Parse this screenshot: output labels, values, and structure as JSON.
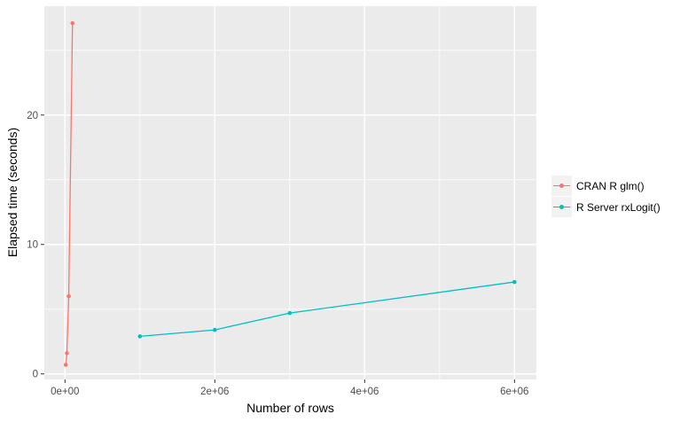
{
  "chart_data": {
    "type": "line",
    "title": "",
    "xlabel": "Number of rows",
    "ylabel": "Elapsed time (seconds)",
    "xlim": [
      -276000,
      6292000
    ],
    "ylim": [
      -0.43,
      28.41
    ],
    "grid": true,
    "legend_position": "right",
    "x_ticks": {
      "values": [
        0,
        2000000,
        4000000,
        6000000
      ],
      "labels": [
        "0e+00",
        "2e+06",
        "4e+06",
        "6e+06"
      ]
    },
    "x_minor": [
      1000000,
      3000000,
      5000000
    ],
    "y_ticks": {
      "values": [
        0,
        10,
        20
      ],
      "labels": [
        "0",
        "10",
        "20"
      ]
    },
    "y_minor": [
      5,
      15,
      25
    ],
    "series": [
      {
        "name": "CRAN R glm()",
        "color": "#F8766D",
        "points": [
          [
            10000,
            0.7
          ],
          [
            25000,
            1.6
          ],
          [
            50000,
            6.0
          ],
          [
            100000,
            27.1
          ]
        ]
      },
      {
        "name": "R Server rxLogit()",
        "color": "#00BFC4",
        "points": [
          [
            1000000,
            2.9
          ],
          [
            2000000,
            3.4
          ],
          [
            3000000,
            4.7
          ],
          [
            6000000,
            7.1
          ]
        ]
      }
    ]
  },
  "colors": {
    "panel_bg": "#EBEBEB",
    "grid": "#FFFFFF",
    "tick_text": "#4D4D4D",
    "tick_mark": "#333333",
    "axis_title": "#000000",
    "legend_key_bg": "#F2F2F2"
  }
}
